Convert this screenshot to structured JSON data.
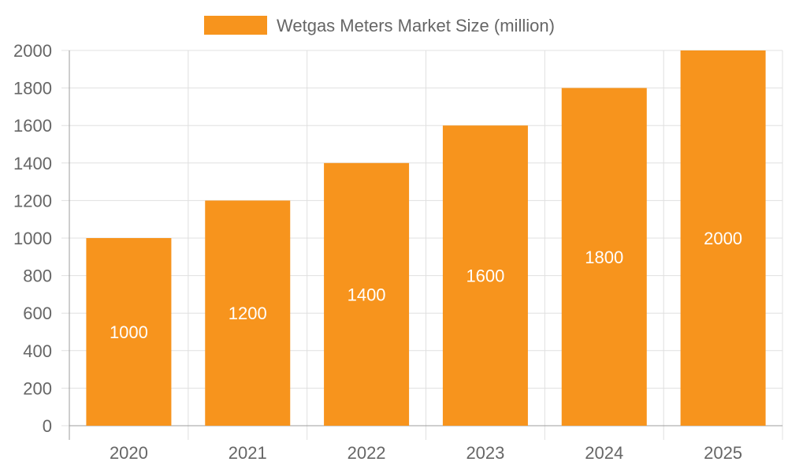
{
  "chart_data": {
    "type": "bar",
    "categories": [
      "2020",
      "2021",
      "2022",
      "2023",
      "2024",
      "2025"
    ],
    "series": [
      {
        "name": "Wetgas Meters Market Size (million)",
        "values": [
          1000,
          1200,
          1400,
          1600,
          1800,
          2000
        ]
      }
    ],
    "ylim": [
      0,
      2000
    ],
    "yticks": [
      0,
      200,
      400,
      600,
      800,
      1000,
      1200,
      1400,
      1600,
      1800,
      2000
    ],
    "grid": true,
    "legend_position": "top-center",
    "data_labels": [
      "1000",
      "1200",
      "1400",
      "1600",
      "1800",
      "2000"
    ]
  },
  "colors": {
    "bar": "#f7941d",
    "grid": "#e0e0e0",
    "axis": "#9e9e9e",
    "text": "#666666",
    "data_label": "#ffffff"
  }
}
